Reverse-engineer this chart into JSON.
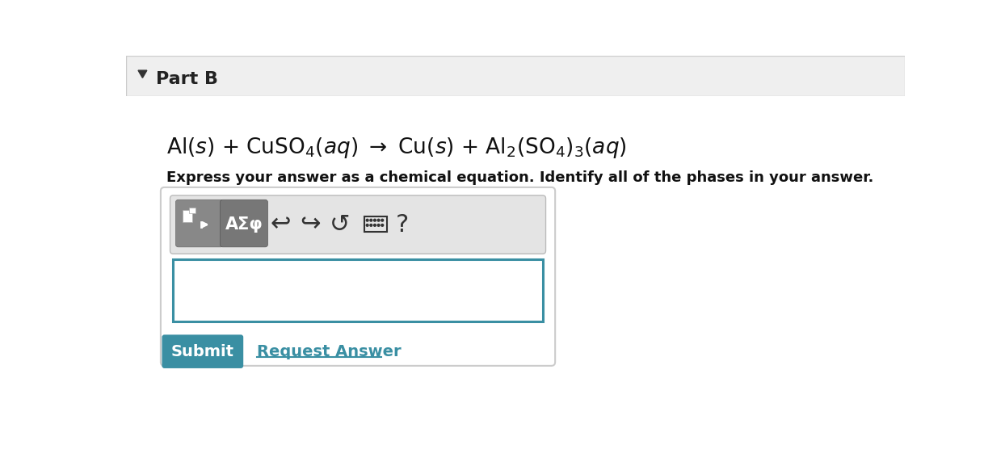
{
  "bg_color": "#f5f5f5",
  "white_bg": "#ffffff",
  "header_bg": "#efefef",
  "part_b_text": "Part B",
  "submit_text": "Submit",
  "request_text": "Request Answer",
  "submit_color": "#3a8fa3",
  "request_color": "#3a8fa3",
  "input_border": "#3a8fa3",
  "panel_border": "#cccccc",
  "triangle_color": "#333333",
  "toolbar_bg": "#e4e4e4",
  "btn1_bg": "#888888",
  "btn2_bg": "#777777"
}
